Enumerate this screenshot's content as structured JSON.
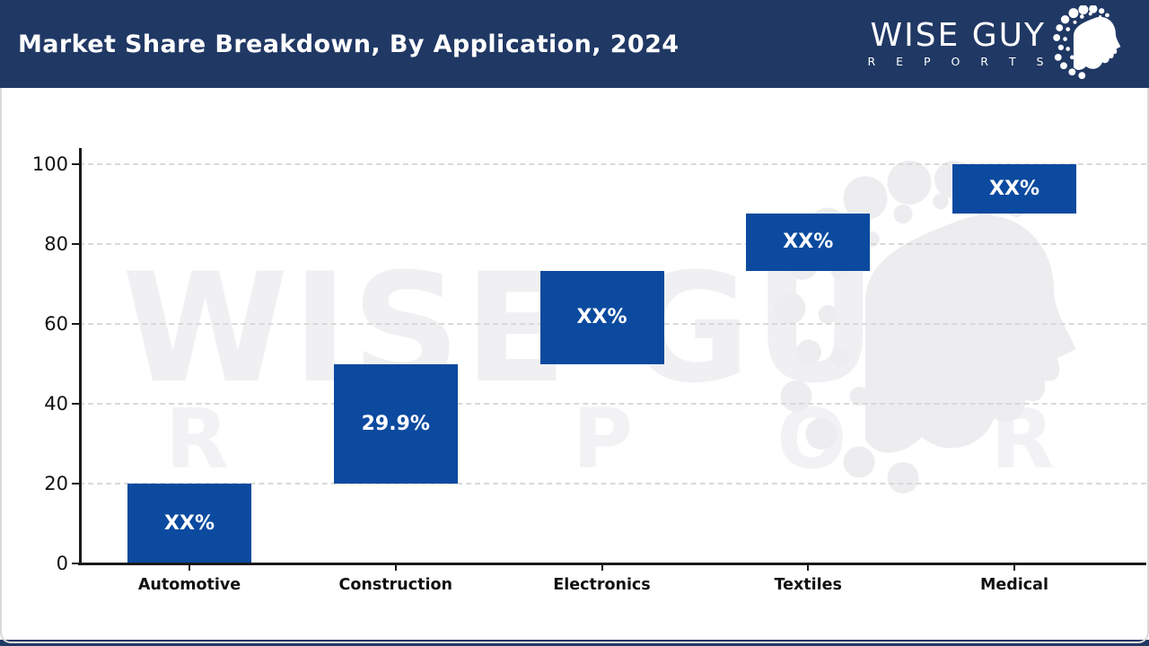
{
  "header": {
    "title": "Market Share Breakdown, By Application, 2024",
    "brand": {
      "top": "WISE GUY",
      "bottom": "R E P O R T S"
    }
  },
  "watermark": {
    "top": "WISE GUY",
    "bottom": "R E P O R T S"
  },
  "colors": {
    "header_navy": "#203864",
    "bar_blue": "#0B4A9F",
    "grid_gray": "#d9d9d9",
    "axis_black": "#1a1a1a"
  },
  "chart_data": {
    "type": "bar",
    "subtype": "waterfall",
    "title": "Market Share Breakdown, By Application, 2024",
    "categories": [
      "Automotive",
      "Construction",
      "Electronics",
      "Textiles",
      "Medical"
    ],
    "segments": [
      {
        "category": "Automotive",
        "start": 0,
        "end": 20,
        "value": 20,
        "label": "XX%"
      },
      {
        "category": "Construction",
        "start": 20,
        "end": 49.9,
        "value": 29.9,
        "label": "29.9%"
      },
      {
        "category": "Electronics",
        "start": 49.9,
        "end": 73.3,
        "value": 23.4,
        "label": "XX%"
      },
      {
        "category": "Textiles",
        "start": 73.3,
        "end": 87.7,
        "value": 14.4,
        "label": "XX%"
      },
      {
        "category": "Medical",
        "start": 87.7,
        "end": 100,
        "value": 12.3,
        "label": "XX%"
      }
    ],
    "yticks": [
      0,
      20,
      40,
      60,
      80,
      100
    ],
    "ylim": [
      0,
      104
    ],
    "xlabel": "",
    "ylabel": "",
    "grid": "horizontal-dashed",
    "legend": "none",
    "bar_color": "#0B4A9F"
  }
}
